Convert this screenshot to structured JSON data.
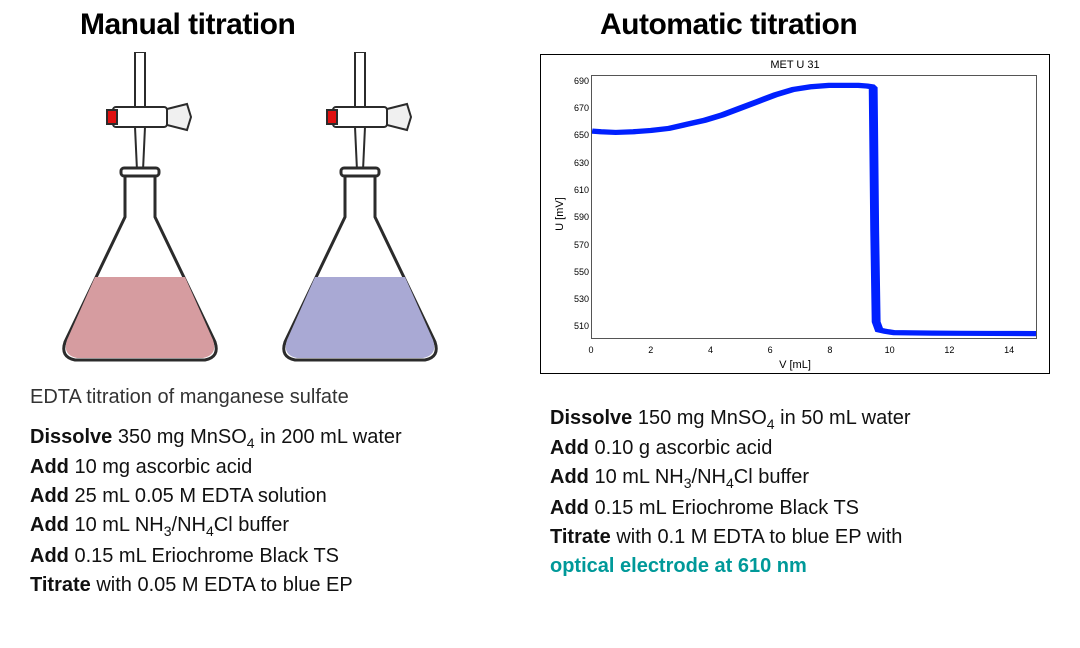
{
  "left": {
    "heading": "Manual titration",
    "subtitle": "EDTA titration of manganese sulfate",
    "flasks": {
      "fill1": "#d69ca0",
      "fill2": "#a9a9d4",
      "burette_red": "#e01010",
      "outline": "#2b2b2b",
      "glass": "#ffffff"
    },
    "steps": [
      {
        "verb": "Dissolve",
        "rest": " 350 mg MnSO",
        "sub": "4",
        "tail": " in 200 mL water"
      },
      {
        "verb": "Add",
        "rest": " 10 mg ascorbic acid"
      },
      {
        "verb": "Add",
        "rest": " 25 mL 0.05 M EDTA solution"
      },
      {
        "verb": "Add",
        "rest": " 10 mL NH",
        "sub": "3",
        "mid": "/NH",
        "sub2": "4",
        "tail": "Cl buffer"
      },
      {
        "verb": "Add",
        "rest": " 0.15 mL Eriochrome Black TS"
      },
      {
        "verb": "Titrate",
        "rest": " with 0.05 M EDTA to blue EP"
      }
    ]
  },
  "right": {
    "heading": "Automatic titration",
    "chart": {
      "title": "MET U 31",
      "ylabel": "U [mV]",
      "xlabel": "V [mL]",
      "xmin": 0,
      "xmax": 15,
      "ymin": 500,
      "ymax": 695,
      "yticks": [
        510,
        530,
        550,
        570,
        590,
        610,
        630,
        650,
        670,
        690
      ],
      "xticks": [
        0,
        2,
        4,
        6,
        8,
        10,
        12,
        14
      ],
      "series_color": "#0020ff",
      "points": [
        [
          0.0,
          654
        ],
        [
          0.3,
          653.5
        ],
        [
          0.8,
          653
        ],
        [
          1.4,
          653.5
        ],
        [
          2.0,
          654.5
        ],
        [
          2.6,
          656
        ],
        [
          3.2,
          659
        ],
        [
          3.8,
          662
        ],
        [
          4.4,
          666
        ],
        [
          5.0,
          671
        ],
        [
          5.6,
          676
        ],
        [
          6.2,
          681
        ],
        [
          6.8,
          685
        ],
        [
          7.4,
          687
        ],
        [
          8.0,
          688
        ],
        [
          8.6,
          688
        ],
        [
          9.0,
          688
        ],
        [
          9.3,
          687.5
        ],
        [
          9.45,
          687
        ],
        [
          9.5,
          686
        ],
        [
          9.55,
          580
        ],
        [
          9.6,
          512
        ],
        [
          9.7,
          506
        ],
        [
          9.9,
          505
        ],
        [
          10.2,
          504
        ],
        [
          10.8,
          503.8
        ],
        [
          11.5,
          503.6
        ],
        [
          12.5,
          503.5
        ],
        [
          13.5,
          503.4
        ],
        [
          15.0,
          503.3
        ]
      ]
    },
    "steps": [
      {
        "verb": "Dissolve",
        "rest": " 150 mg MnSO",
        "sub": "4",
        "tail": " in 50 mL water"
      },
      {
        "verb": "Add",
        "rest": " 0.10 g ascorbic acid"
      },
      {
        "verb": "Add",
        "rest": " 10 mL NH",
        "sub": "3",
        "mid": "/NH",
        "sub2": "4",
        "tail": "Cl buffer"
      },
      {
        "verb": "Add",
        "rest": " 0.15 mL Eriochrome Black TS"
      },
      {
        "verb": "Titrate",
        "rest": " with 0.1 M EDTA to blue EP with"
      },
      {
        "teal": "optical electrode at 610 nm"
      }
    ]
  }
}
